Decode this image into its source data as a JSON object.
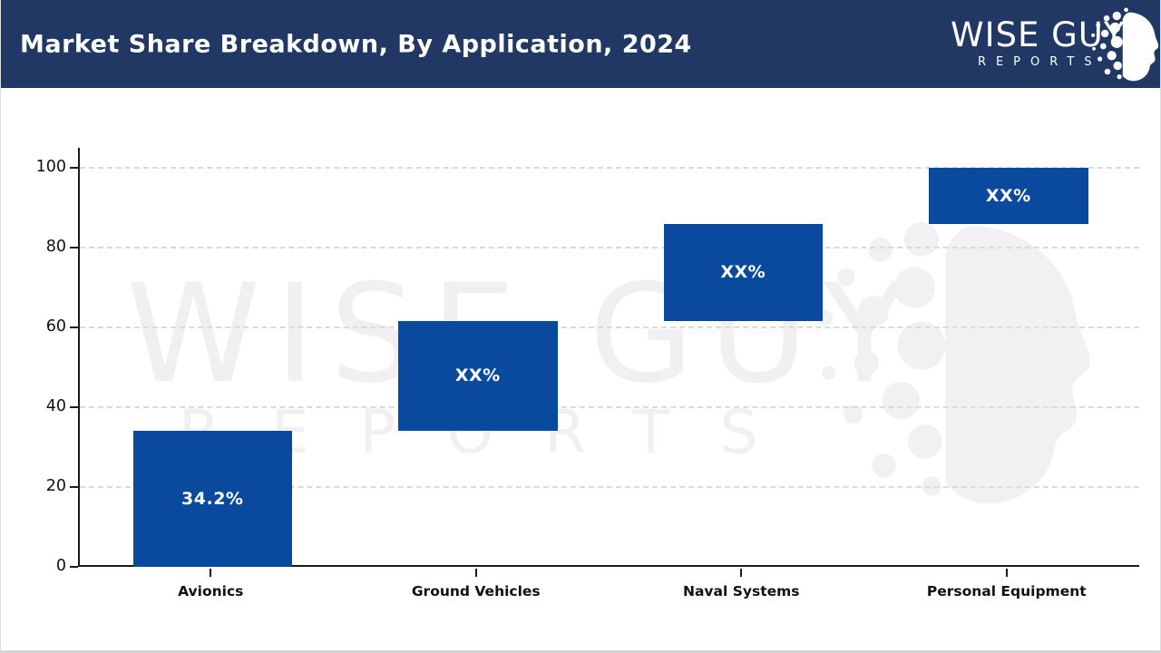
{
  "header": {
    "title": "Market Share Breakdown, By Application, 2024",
    "logo": {
      "line1": "WISE GUY",
      "line2": "REPORTS"
    }
  },
  "watermark": {
    "line1": "WISE GUY",
    "line2": "REPORTS"
  },
  "colors": {
    "header_bg": "#213864",
    "bar": "#0a4a9e",
    "bar_label": "#ffffff",
    "grid": "#dadada",
    "axis": "#1a1a1a",
    "watermark": "#f0f0f3"
  },
  "chart_data": {
    "type": "bar",
    "subtype": "waterfall",
    "title": "Market Share Breakdown, By Application, 2024",
    "categories": [
      "Avionics",
      "Ground Vehicles",
      "Naval Systems",
      "Personal Equipment"
    ],
    "segments": [
      {
        "category": "Avionics",
        "start": 0,
        "end": 34.2,
        "label": "34.2%"
      },
      {
        "category": "Ground Vehicles",
        "start": 34.2,
        "end": 61.5,
        "label": "XX%"
      },
      {
        "category": "Naval Systems",
        "start": 61.5,
        "end": 86.0,
        "label": "XX%"
      },
      {
        "category": "Personal Equipment",
        "start": 86.0,
        "end": 100.0,
        "label": "XX%"
      }
    ],
    "xlabel": "",
    "ylabel": "",
    "yticks": [
      0,
      20,
      40,
      60,
      80,
      100
    ],
    "ylim": [
      0,
      105
    ],
    "grid": "horizontal-dashed",
    "legend": "none"
  }
}
